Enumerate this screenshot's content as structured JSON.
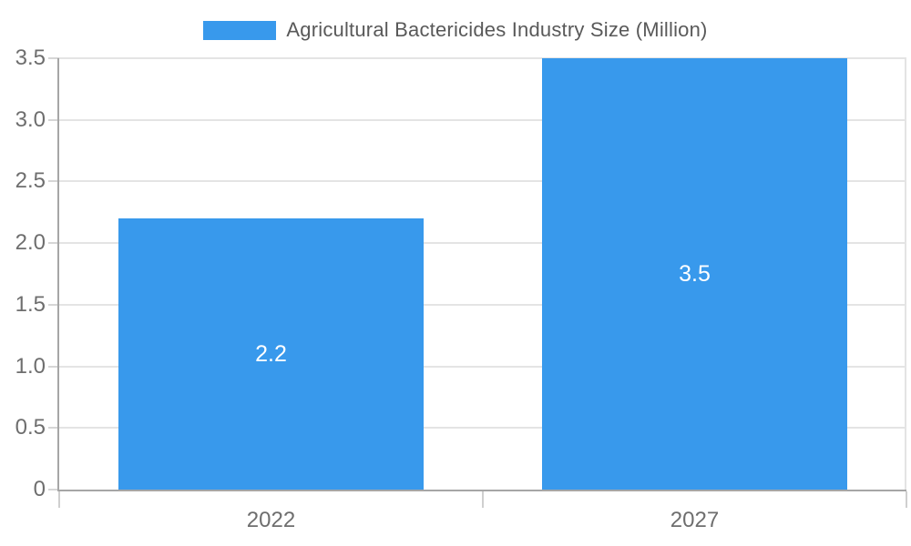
{
  "chart_data": {
    "type": "bar",
    "title": "Agricultural Bactericides Industry Size (Million)",
    "legend_label": "Agricultural Bactericides Industry Size (Million)",
    "legend_position": "top-center",
    "categories": [
      "2022",
      "2027"
    ],
    "series": [
      {
        "name": "Agricultural Bactericides Industry Size (Million)",
        "values": [
          2.2,
          3.5
        ]
      }
    ],
    "value_labels": [
      "2.2",
      "3.5"
    ],
    "xlabel": "",
    "ylabel": "",
    "ylim": [
      0,
      3.5
    ],
    "ytick_values": [
      0,
      0.5,
      1.0,
      1.5,
      2.0,
      2.5,
      3.0,
      3.5
    ],
    "ytick_labels": [
      "0",
      "0.5",
      "1.0",
      "1.5",
      "2.0",
      "2.5",
      "3.0",
      "3.5"
    ],
    "grid": true,
    "colors": {
      "bar": "#3899EC",
      "axis": "#A6A6A6",
      "grid": "#E4E4E4",
      "tick_mark": "#D6D6D6",
      "boundary_tick": "#CFCFCF",
      "tick_text": "#6E6E6E",
      "legend_text": "#595959",
      "value_text": "#FFFFFF",
      "background": "#FFFFFF"
    }
  }
}
